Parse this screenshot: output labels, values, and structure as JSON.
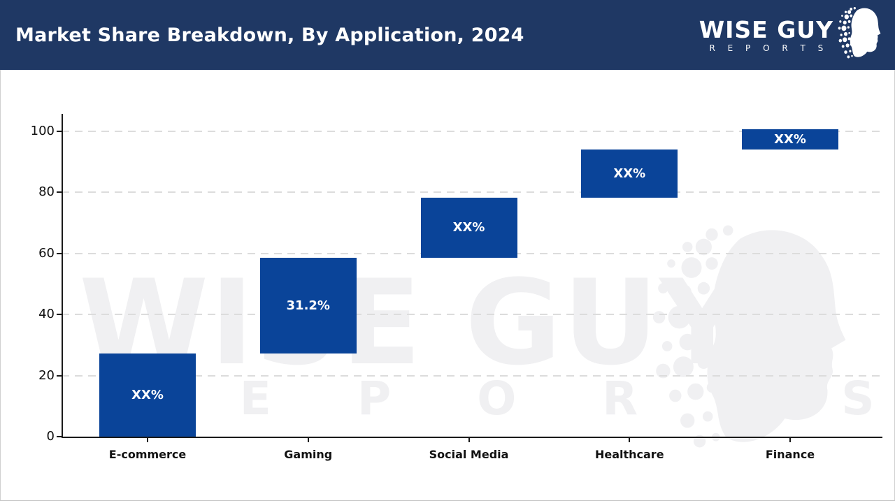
{
  "header": {
    "title": "Market Share Breakdown, By Application, 2024",
    "logo": {
      "line1": "WISE GUY",
      "line2": "R E P O R T S"
    }
  },
  "watermark": {
    "line1": "WISE GUY",
    "line2": "R E P O R T S"
  },
  "colors": {
    "header_bg": "#1f3864",
    "header_text": "#ffffff",
    "bar": "#0a4499",
    "bar_label": "#ffffff",
    "gridline": "#dcdcdc",
    "axis": "#1a1a1a",
    "tick_text": "#111111",
    "watermark": "#f0f0f2"
  },
  "chart_data": {
    "type": "bar",
    "subtype": "waterfall",
    "title": "Market Share Breakdown, By Application, 2024",
    "xlabel": "",
    "ylabel": "",
    "categories": [
      "E-commerce",
      "Gaming",
      "Social Media",
      "Healthcare",
      "Finance"
    ],
    "bars": [
      {
        "category": "E-commerce",
        "start": 0,
        "end": 27.3,
        "size": 27.3,
        "label": "XX%"
      },
      {
        "category": "Gaming",
        "start": 27.3,
        "end": 58.5,
        "size": 31.2,
        "label": "31.2%"
      },
      {
        "category": "Social Media",
        "start": 58.5,
        "end": 78.2,
        "size": 19.7,
        "label": "XX%"
      },
      {
        "category": "Healthcare",
        "start": 78.2,
        "end": 93.9,
        "size": 15.7,
        "label": "XX%"
      },
      {
        "category": "Finance",
        "start": 93.9,
        "end": 100.5,
        "size": 6.6,
        "label": "XX%"
      }
    ],
    "yticks": [
      0,
      20,
      40,
      60,
      80,
      100
    ],
    "ylim": [
      0,
      105
    ],
    "grid": "horizontal-dashed",
    "legend": "none"
  }
}
